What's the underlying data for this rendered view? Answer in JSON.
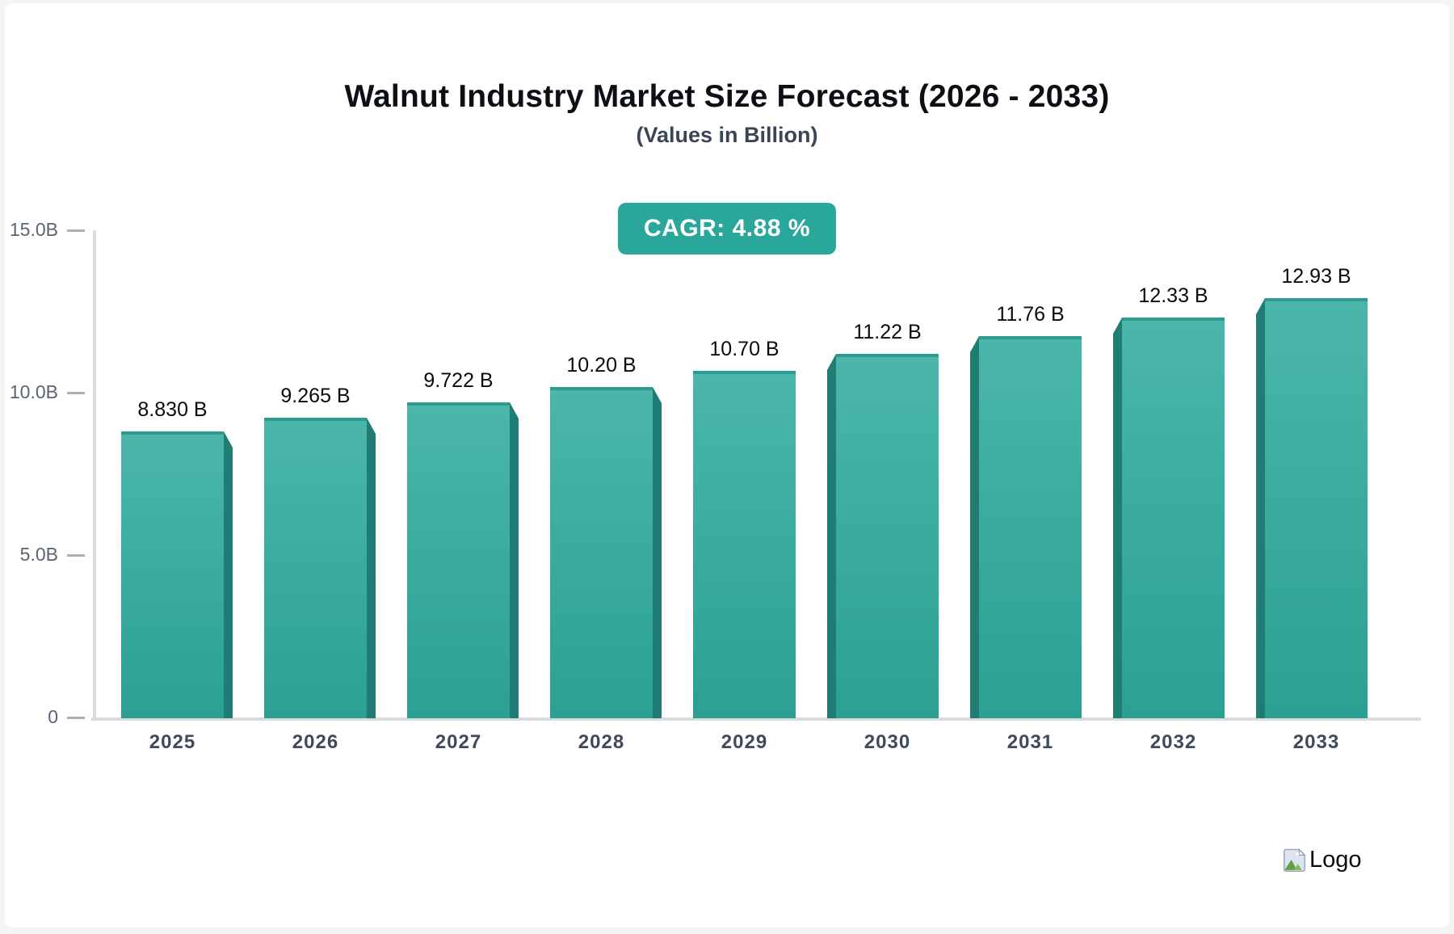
{
  "page": {
    "background": "#f4f5f7",
    "card_background": "#ffffff"
  },
  "header": {
    "title": "Walnut Industry Market Size Forecast (2026 - 2033)",
    "subtitle": "(Values in Billion)",
    "cagr_badge": "CAGR: 4.88 %"
  },
  "logo": {
    "alt_text": "Logo",
    "icon": "broken-image-icon"
  },
  "colors": {
    "badge_background": "#2aa79b",
    "bar_face_top": "#4bb6aa",
    "bar_face_bottom": "#2ba093",
    "bar_side_3d": "#1f7d73",
    "bar_top_edge": "#2d9b90",
    "axis_line": "#d8dbe0",
    "tick_dash": "#aab0b9",
    "y_label": "#5b6472",
    "x_label": "#3e4a5c",
    "title": "#0c0f14",
    "subtitle": "#3a4656",
    "value_label": "#0b0b0b"
  },
  "chart_data": {
    "type": "bar",
    "title": "Walnut Industry Market Size Forecast (2026 - 2033)",
    "subtitle": "(Values in Billion)",
    "annotation": "CAGR: 4.88 %",
    "categories": [
      "2025",
      "2026",
      "2027",
      "2028",
      "2029",
      "2030",
      "2031",
      "2032",
      "2033"
    ],
    "values": [
      8.83,
      9.265,
      9.722,
      10.2,
      10.7,
      11.22,
      11.76,
      12.33,
      12.93
    ],
    "value_labels": [
      "8.830 B",
      "9.265 B",
      "9.722 B",
      "10.20 B",
      "10.70 B",
      "11.22 B",
      "11.76 B",
      "12.33 B",
      "12.93 B"
    ],
    "unit": "Billion",
    "xlabel": "",
    "ylabel": "",
    "ylim": [
      0,
      15
    ],
    "yticks": [
      {
        "value": 0,
        "label": "0"
      },
      {
        "value": 5,
        "label": "5.0B"
      },
      {
        "value": 10,
        "label": "10.0B"
      },
      {
        "value": 15,
        "label": "15.0B"
      }
    ],
    "grid": false,
    "legend": false,
    "bar_style": "3d-extruded-teal"
  }
}
